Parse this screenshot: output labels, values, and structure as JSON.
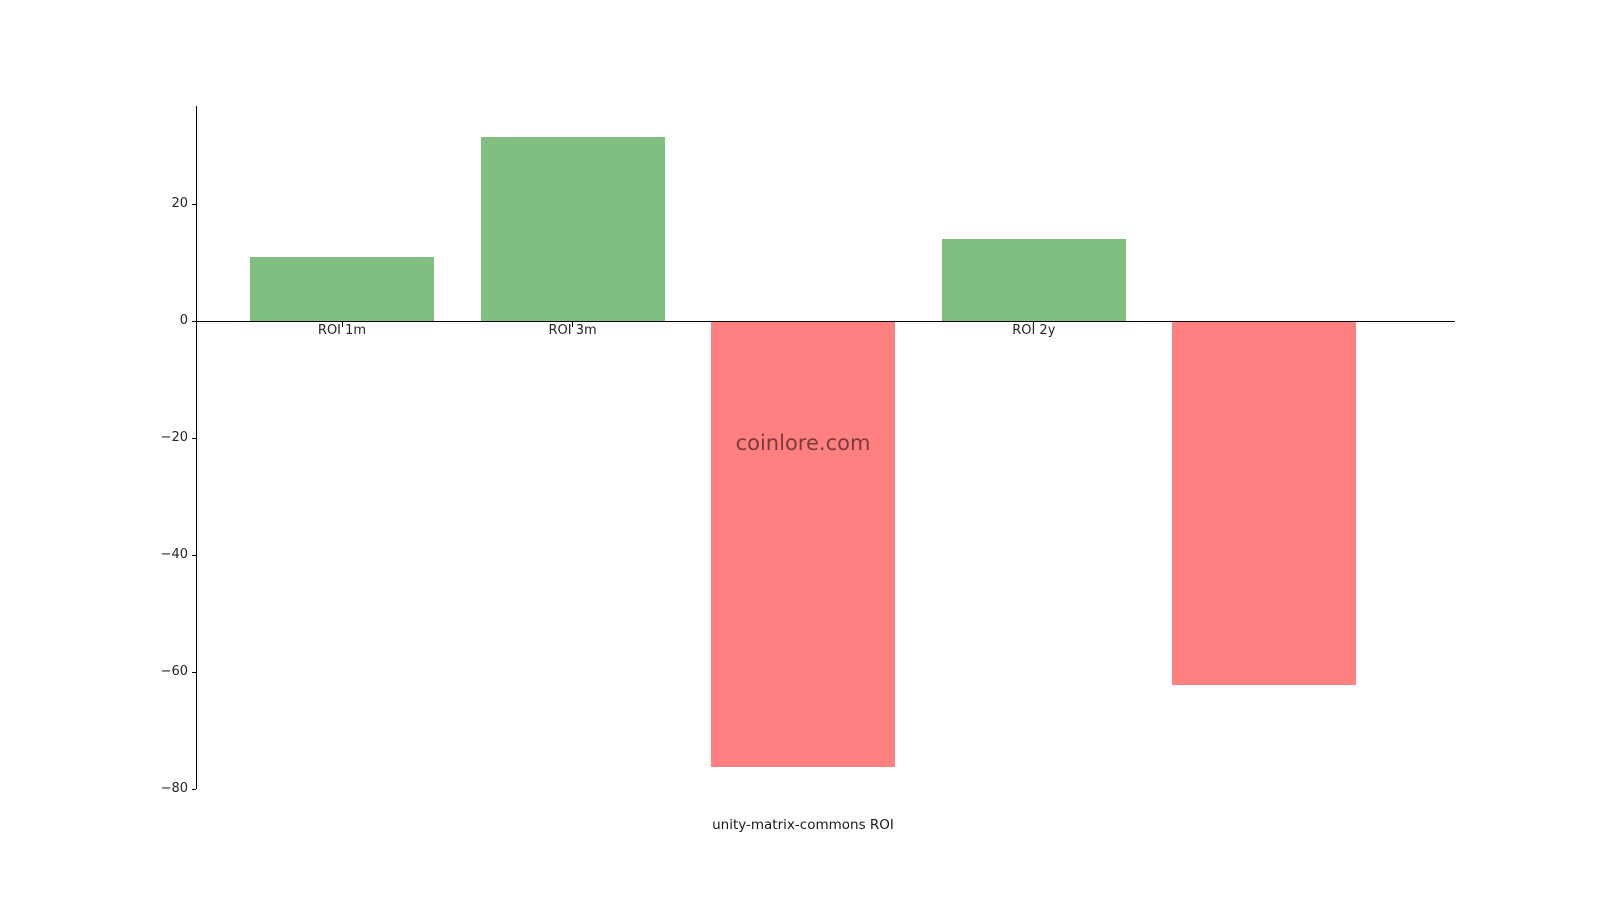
{
  "chart_data": {
    "type": "bar",
    "title": "unity-matrix-commons ROI",
    "watermark": "coinlore.com",
    "xlabel": "",
    "ylabel": "",
    "ylim": [
      -80,
      37
    ],
    "grid": false,
    "legend": false,
    "bars": [
      {
        "label": "ROI 1m",
        "value": 11,
        "sign": "positive",
        "label_visible": true
      },
      {
        "label": "ROI 3m",
        "value": 31.5,
        "sign": "positive",
        "label_visible": true
      },
      {
        "label": "",
        "value": -76,
        "sign": "negative",
        "label_visible": false
      },
      {
        "label": "ROI 2y",
        "value": 14,
        "sign": "positive",
        "label_visible": true
      },
      {
        "label": "",
        "value": -62,
        "sign": "negative",
        "label_visible": false
      }
    ],
    "yticks": [
      {
        "value": 20,
        "label": "20"
      },
      {
        "value": 0,
        "label": "0"
      },
      {
        "value": -20,
        "label": "−20"
      },
      {
        "value": -40,
        "label": "−40"
      },
      {
        "value": -60,
        "label": "−60"
      },
      {
        "value": -80,
        "label": "−80"
      }
    ],
    "colors": {
      "positive_bar": "#80bf80",
      "negative_bar": "#ff8080",
      "axis": "#000000",
      "tick_text": "#262626",
      "watermark": "#7d3a3e"
    }
  }
}
